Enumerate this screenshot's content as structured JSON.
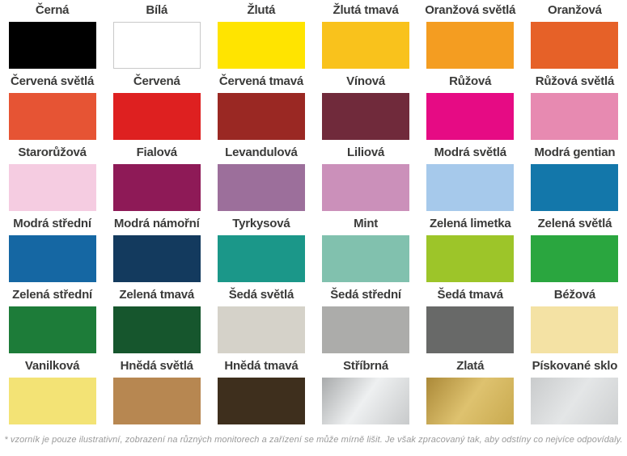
{
  "page": {
    "background": "#ffffff",
    "label_color": "#3a3a39",
    "footnote_color": "#9a9a9a"
  },
  "grid": {
    "columns": 6,
    "rows": 6
  },
  "footnote": "* vzorník je pouze ilustrativní, zobrazení na různých monitorech a zařízení se může mírně lišit. Je však zpracovaný tak, aby odstíny co nejvíce odpovídaly.",
  "swatches": [
    {
      "label": "Černá",
      "fill": {
        "type": "solid",
        "color": "#000000"
      }
    },
    {
      "label": "Bílá",
      "fill": {
        "type": "solid",
        "color": "#ffffff"
      },
      "border": "#c9c9c9"
    },
    {
      "label": "Žlutá",
      "fill": {
        "type": "solid",
        "color": "#ffe400"
      }
    },
    {
      "label": "Žlutá tmavá",
      "fill": {
        "type": "solid",
        "color": "#f9c21c"
      }
    },
    {
      "label": "Oranžová světlá",
      "fill": {
        "type": "solid",
        "color": "#f49d21"
      }
    },
    {
      "label": "Oranžová",
      "fill": {
        "type": "solid",
        "color": "#e66128"
      }
    },
    {
      "label": "Červená světlá",
      "fill": {
        "type": "solid",
        "color": "#e65434"
      }
    },
    {
      "label": "Červená",
      "fill": {
        "type": "solid",
        "color": "#de2020"
      }
    },
    {
      "label": "Červená tmavá",
      "fill": {
        "type": "solid",
        "color": "#9a2823"
      }
    },
    {
      "label": "Vínová",
      "fill": {
        "type": "solid",
        "color": "#702a3b"
      }
    },
    {
      "label": "Růžová",
      "fill": {
        "type": "solid",
        "color": "#e60b84"
      }
    },
    {
      "label": "Růžová světlá",
      "fill": {
        "type": "solid",
        "color": "#e78ab1"
      }
    },
    {
      "label": "Starorůžová",
      "fill": {
        "type": "solid",
        "color": "#f5cce1"
      }
    },
    {
      "label": "Fialová",
      "fill": {
        "type": "solid",
        "color": "#8e1a57"
      }
    },
    {
      "label": "Levandulová",
      "fill": {
        "type": "solid",
        "color": "#9c6f9b"
      }
    },
    {
      "label": "Liliová",
      "fill": {
        "type": "solid",
        "color": "#cb90ba"
      }
    },
    {
      "label": "Modrá světlá",
      "fill": {
        "type": "solid",
        "color": "#a6c9eb"
      }
    },
    {
      "label": "Modrá gentian",
      "fill": {
        "type": "solid",
        "color": "#1377aa"
      }
    },
    {
      "label": "Modrá střední",
      "fill": {
        "type": "solid",
        "color": "#1567a3"
      }
    },
    {
      "label": "Modrá námořní",
      "fill": {
        "type": "solid",
        "color": "#133a5e"
      }
    },
    {
      "label": "Tyrkysová",
      "fill": {
        "type": "solid",
        "color": "#1b9789"
      }
    },
    {
      "label": "Mint",
      "fill": {
        "type": "solid",
        "color": "#81c1ae"
      }
    },
    {
      "label": "Zelená limetka",
      "fill": {
        "type": "solid",
        "color": "#9dc529"
      }
    },
    {
      "label": "Zelená světlá",
      "fill": {
        "type": "solid",
        "color": "#2aa63f"
      }
    },
    {
      "label": "Zelená střední",
      "fill": {
        "type": "solid",
        "color": "#1d7c39"
      }
    },
    {
      "label": "Zelená tmavá",
      "fill": {
        "type": "solid",
        "color": "#16562d"
      }
    },
    {
      "label": "Šedá světlá",
      "fill": {
        "type": "solid",
        "color": "#d5d2c9"
      }
    },
    {
      "label": "Šedá střední",
      "fill": {
        "type": "solid",
        "color": "#acacaa"
      }
    },
    {
      "label": "Šedá tmavá",
      "fill": {
        "type": "solid",
        "color": "#686968"
      }
    },
    {
      "label": "Béžová",
      "fill": {
        "type": "solid",
        "color": "#f4e2a4"
      }
    },
    {
      "label": "Vanilková",
      "fill": {
        "type": "solid",
        "color": "#f3e375"
      }
    },
    {
      "label": "Hnědá světlá",
      "fill": {
        "type": "solid",
        "color": "#b78751"
      }
    },
    {
      "label": "Hnědá tmavá",
      "fill": {
        "type": "solid",
        "color": "#3e2f1d"
      }
    },
    {
      "label": "Stříbrná",
      "fill": {
        "type": "linear",
        "angle": 125,
        "stops": [
          [
            "#a8aaab",
            "0%"
          ],
          [
            "#eef0f1",
            "48%"
          ],
          [
            "#c8cacb",
            "100%"
          ]
        ]
      }
    },
    {
      "label": "Zlatá",
      "fill": {
        "type": "linear",
        "angle": 125,
        "stops": [
          [
            "#ab8938",
            "0%"
          ],
          [
            "#dec26f",
            "50%"
          ],
          [
            "#c9aa4f",
            "100%"
          ]
        ]
      }
    },
    {
      "label": "Pískované sklo",
      "fill": {
        "type": "linear",
        "angle": 125,
        "stops": [
          [
            "#c9cbcc",
            "0%"
          ],
          [
            "#e4e6e7",
            "50%"
          ],
          [
            "#ced0d1",
            "100%"
          ]
        ]
      }
    }
  ]
}
